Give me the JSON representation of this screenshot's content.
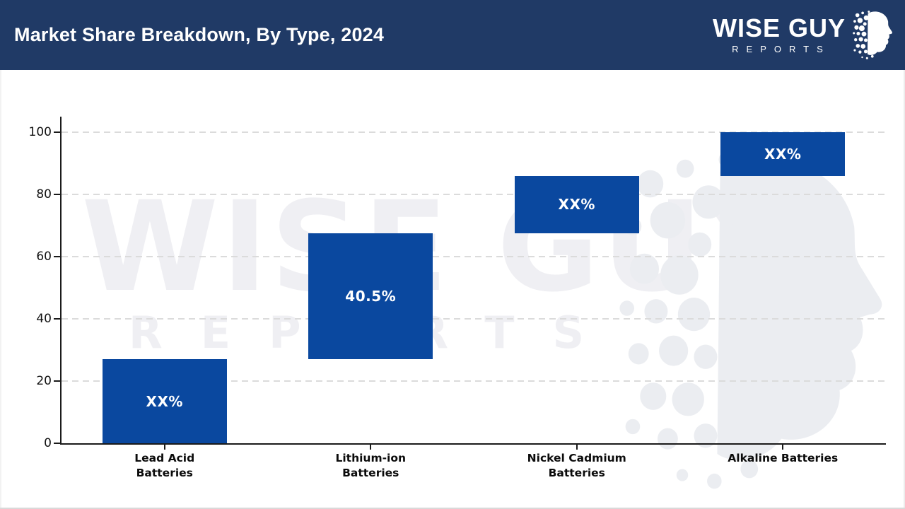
{
  "header": {
    "title": "Market Share Breakdown, By Type, 2024",
    "logo": {
      "primary": "WISE GUY",
      "secondary": "REPORTS"
    }
  },
  "watermark": {
    "primary": "WISE GUY",
    "secondary": "REPORTS"
  },
  "chart_data": {
    "type": "bar",
    "subtype": "floating-waterfall",
    "title": "Market Share Breakdown, By Type, 2024",
    "categories": [
      "Lead Acid Batteries",
      "Lithium-ion Batteries",
      "Nickel Cadmium Batteries",
      "Alkaline Batteries"
    ],
    "category_lines": [
      [
        "Lead Acid",
        "Batteries"
      ],
      [
        "Lithium-ion",
        "Batteries"
      ],
      [
        "Nickel Cadmium",
        "Batteries"
      ],
      [
        "Alkaline Batteries"
      ]
    ],
    "bars": [
      {
        "category": "Lead Acid Batteries",
        "start": 0,
        "end": 27,
        "size": 27,
        "label": "XX%"
      },
      {
        "category": "Lithium-ion Batteries",
        "start": 27,
        "end": 67.5,
        "size": 40.5,
        "label": "40.5%"
      },
      {
        "category": "Nickel Cadmium Batteries",
        "start": 67.5,
        "end": 86,
        "size": 18.5,
        "label": "XX%"
      },
      {
        "category": "Alkaline Batteries",
        "start": 86,
        "end": 100,
        "size": 14,
        "label": "XX%"
      }
    ],
    "xlabel": "",
    "ylabel": "",
    "ylim": [
      0,
      100
    ],
    "yticks": [
      0,
      20,
      40,
      60,
      80,
      100
    ],
    "grid": true,
    "grid_style": "dashed",
    "legend": false,
    "bar_color": "#0A489F",
    "bar_label_color": "#FFFFFF"
  },
  "colors": {
    "header_bg": "#203A66",
    "header_text": "#FFFFFF",
    "bar": "#0A489F",
    "axis": "#1A1A1A",
    "gridline": "#DBDBDB",
    "tick_label": "#111111",
    "watermark": "#EFEFF3",
    "page_bg": "#FFFFFF"
  }
}
